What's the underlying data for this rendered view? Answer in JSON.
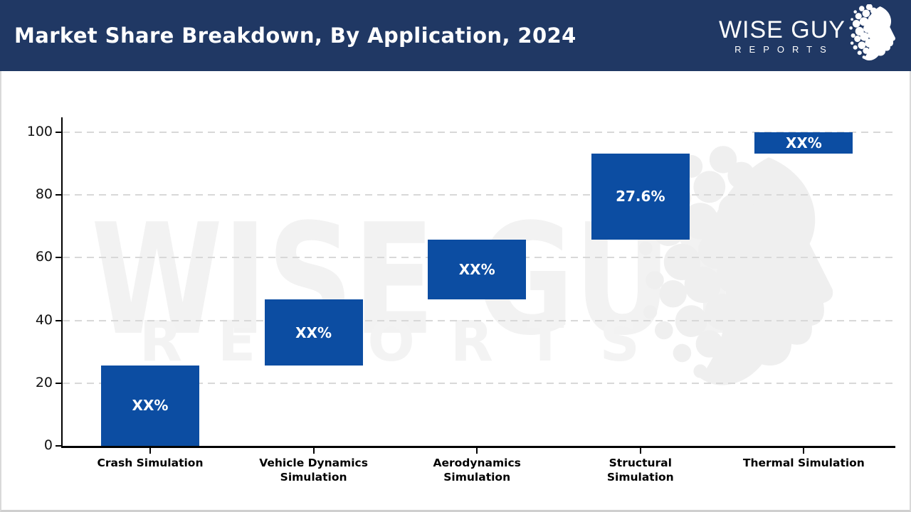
{
  "header": {
    "title": "Market Share Breakdown, By Application, 2024",
    "bg_color": "#203864",
    "logo": {
      "line1": "WISE GUY",
      "line2": "REPORTS"
    }
  },
  "watermark": {
    "line1": "WISE GUY",
    "line2": "REPORTS"
  },
  "chart_data": {
    "type": "bar",
    "subtype": "floating-waterfall",
    "title": "Market Share Breakdown, By Application, 2024",
    "categories": [
      "Crash Simulation",
      "Vehicle Dynamics Simulation",
      "Aerodynamics Simulation",
      "Structural Simulation",
      "Thermal Simulation"
    ],
    "category_label_lines": [
      [
        "Crash Simulation"
      ],
      [
        "Vehicle Dynamics",
        "Simulation"
      ],
      [
        "Aerodynamics",
        "Simulation"
      ],
      [
        "Structural",
        "Simulation"
      ],
      [
        "Thermal Simulation"
      ]
    ],
    "bars": [
      {
        "category": "Crash Simulation",
        "start": 0,
        "end": 25.7,
        "size": 25.7,
        "label": "XX%"
      },
      {
        "category": "Vehicle Dynamics Simulation",
        "start": 25.7,
        "end": 46.6,
        "size": 20.9,
        "label": "XX%"
      },
      {
        "category": "Aerodynamics Simulation",
        "start": 46.6,
        "end": 65.7,
        "size": 19.1,
        "label": "XX%"
      },
      {
        "category": "Structural Simulation",
        "start": 65.7,
        "end": 93.3,
        "size": 27.6,
        "label": "27.6%"
      },
      {
        "category": "Thermal Simulation",
        "start": 93.3,
        "end": 100,
        "size": 6.7,
        "label": "XX%"
      }
    ],
    "xlabel": "",
    "ylabel": "",
    "ylim": [
      0,
      100
    ],
    "yticks": [
      0,
      20,
      40,
      60,
      80,
      100
    ],
    "grid": "horizontal-dashed",
    "gridline_color": "#d8d8d8",
    "bar_color": "#0c4da2",
    "bar_label_color": "#ffffff",
    "axis_color": "#000000",
    "legend": "none"
  }
}
